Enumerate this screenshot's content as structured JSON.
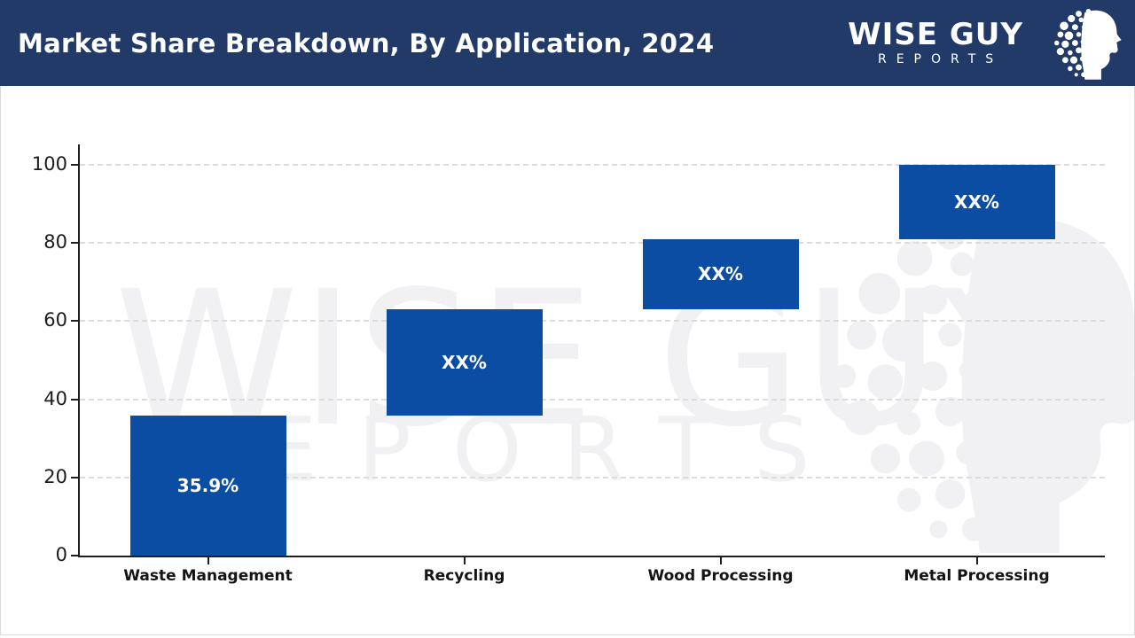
{
  "header": {
    "title": "Market Share Breakdown, By Application, 2024",
    "logo": {
      "line1": "WISE GUY",
      "line2": "REPORTS"
    },
    "bg_color": "#223A68"
  },
  "watermark": {
    "line1": "WISE GUY",
    "line2": "REPORTS"
  },
  "chart_data": {
    "type": "bar",
    "subtype": "waterfall",
    "title": "Market Share Breakdown, By Application, 2024",
    "categories": [
      "Waste Management",
      "Recycling",
      "Wood Processing",
      "Metal Processing"
    ],
    "segments": [
      {
        "category": "Waste Management",
        "start": 0,
        "end": 35.9,
        "label": "35.9%"
      },
      {
        "category": "Recycling",
        "start": 35.9,
        "end": 63,
        "label": "XX%"
      },
      {
        "category": "Wood Processing",
        "start": 63,
        "end": 81,
        "label": "XX%"
      },
      {
        "category": "Metal Processing",
        "start": 81,
        "end": 100,
        "label": "XX%"
      }
    ],
    "yticks": [
      0,
      20,
      40,
      60,
      80,
      100
    ],
    "ylim": [
      0,
      105
    ],
    "grid": "dashed-horizontal",
    "legend": "none",
    "bar_color": "#0B4DA2",
    "bar_label_color": "#FFFFFF",
    "axis_color": "#1f1f1f"
  }
}
